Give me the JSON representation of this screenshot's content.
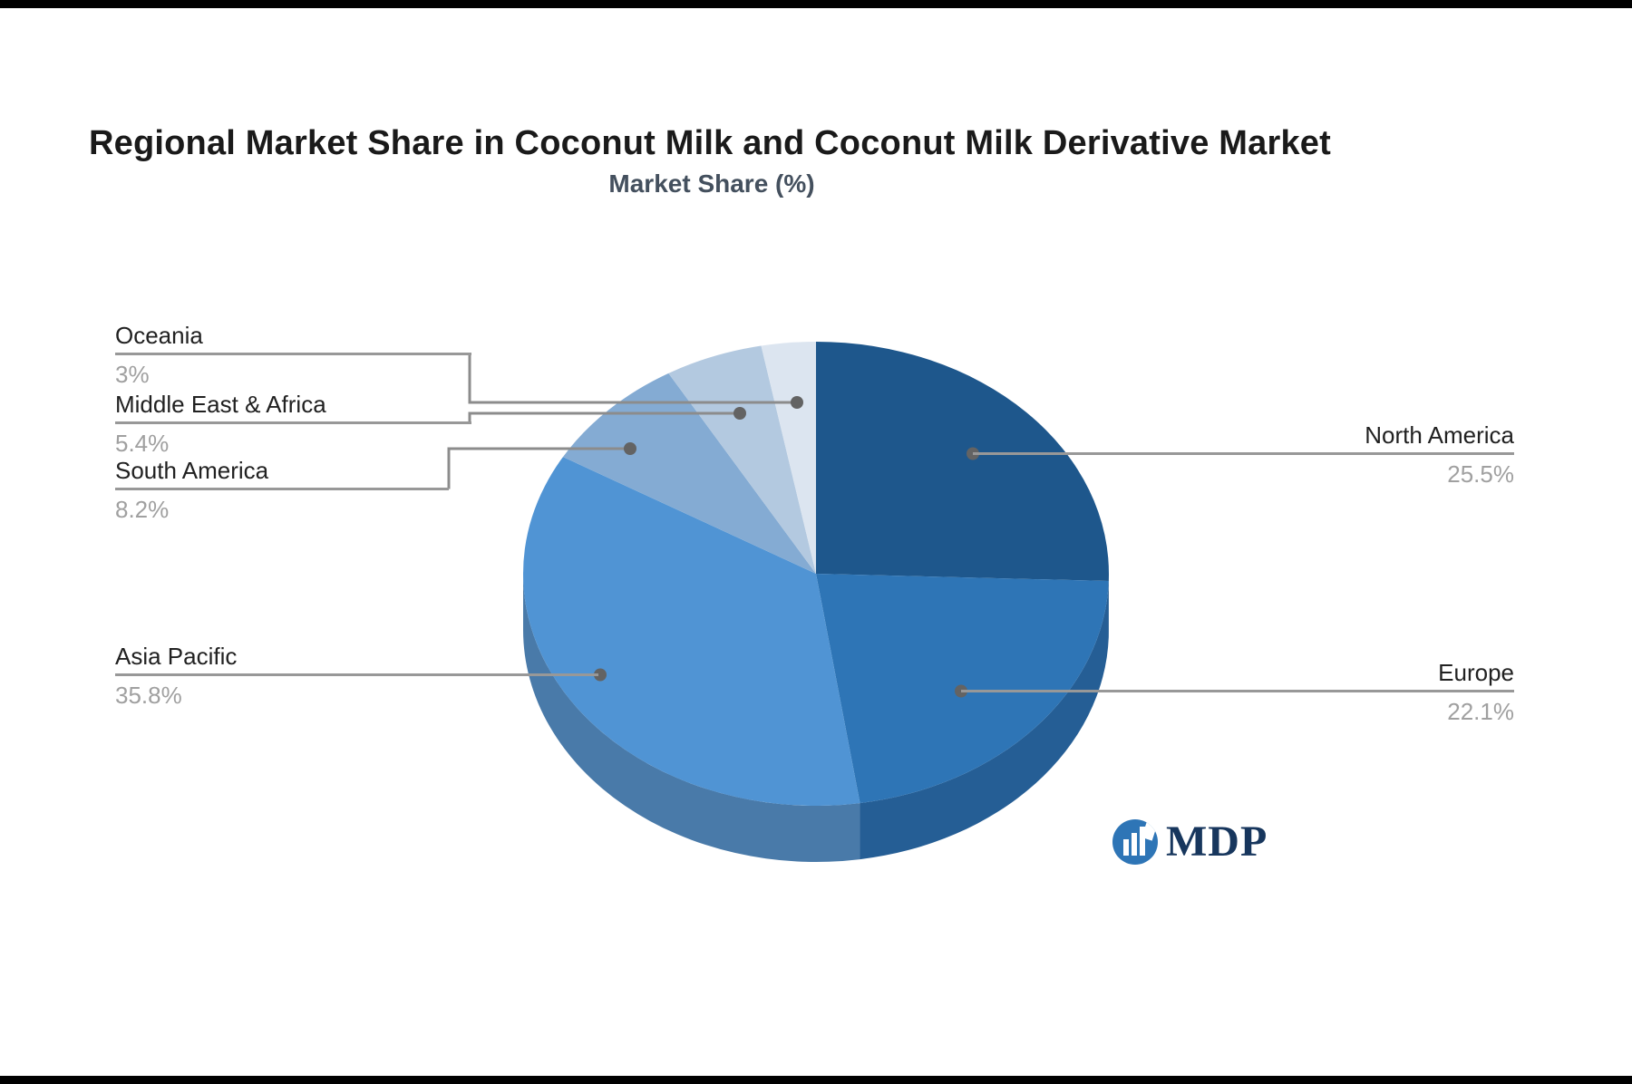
{
  "chart_data": {
    "type": "pie",
    "style": "3d-pie",
    "title": "Regional Market Share in Coconut Milk and Coconut Milk Derivative Market",
    "subtitle": "Market Share (%)",
    "unit": "%",
    "start_angle_deg": 0,
    "direction": "clockwise",
    "legend_position": "none",
    "series": [
      {
        "name": "North America",
        "value": 25.5,
        "display": "25.5%",
        "color": "#1E578C",
        "side_color": "#16456F",
        "label_side": "right"
      },
      {
        "name": "Europe",
        "value": 22.1,
        "display": "22.1%",
        "color": "#2E75B6",
        "side_color": "#255E95",
        "label_side": "right"
      },
      {
        "name": "Asia Pacific",
        "value": 35.8,
        "display": "35.8%",
        "color": "#5094D4",
        "side_color": "#497AA9",
        "label_side": "left"
      },
      {
        "name": "South America",
        "value": 8.2,
        "display": "8.2%",
        "color": "#84ABD3",
        "side_color": "#6E93BA",
        "label_side": "left"
      },
      {
        "name": "Middle East & Africa",
        "value": 5.4,
        "display": "5.4%",
        "color": "#B3C9E0",
        "side_color": "#97AFC9",
        "label_side": "left"
      },
      {
        "name": "Oceania",
        "value": 3,
        "display": "3%",
        "color": "#DCE5F0",
        "side_color": "#C0CEDF",
        "label_side": "left"
      }
    ]
  },
  "logo": {
    "text": "MDP",
    "icon_color": "#2E75B6",
    "text_color": "#17365d"
  },
  "ui_colors": {
    "title": "#1a1a1a",
    "subtitle": "#44505e",
    "label_name": "#212121",
    "label_pct": "#a0a0a0",
    "connector_line": "#8c8c8c",
    "connector_dot": "#636363",
    "edge_bars": "#000000"
  }
}
